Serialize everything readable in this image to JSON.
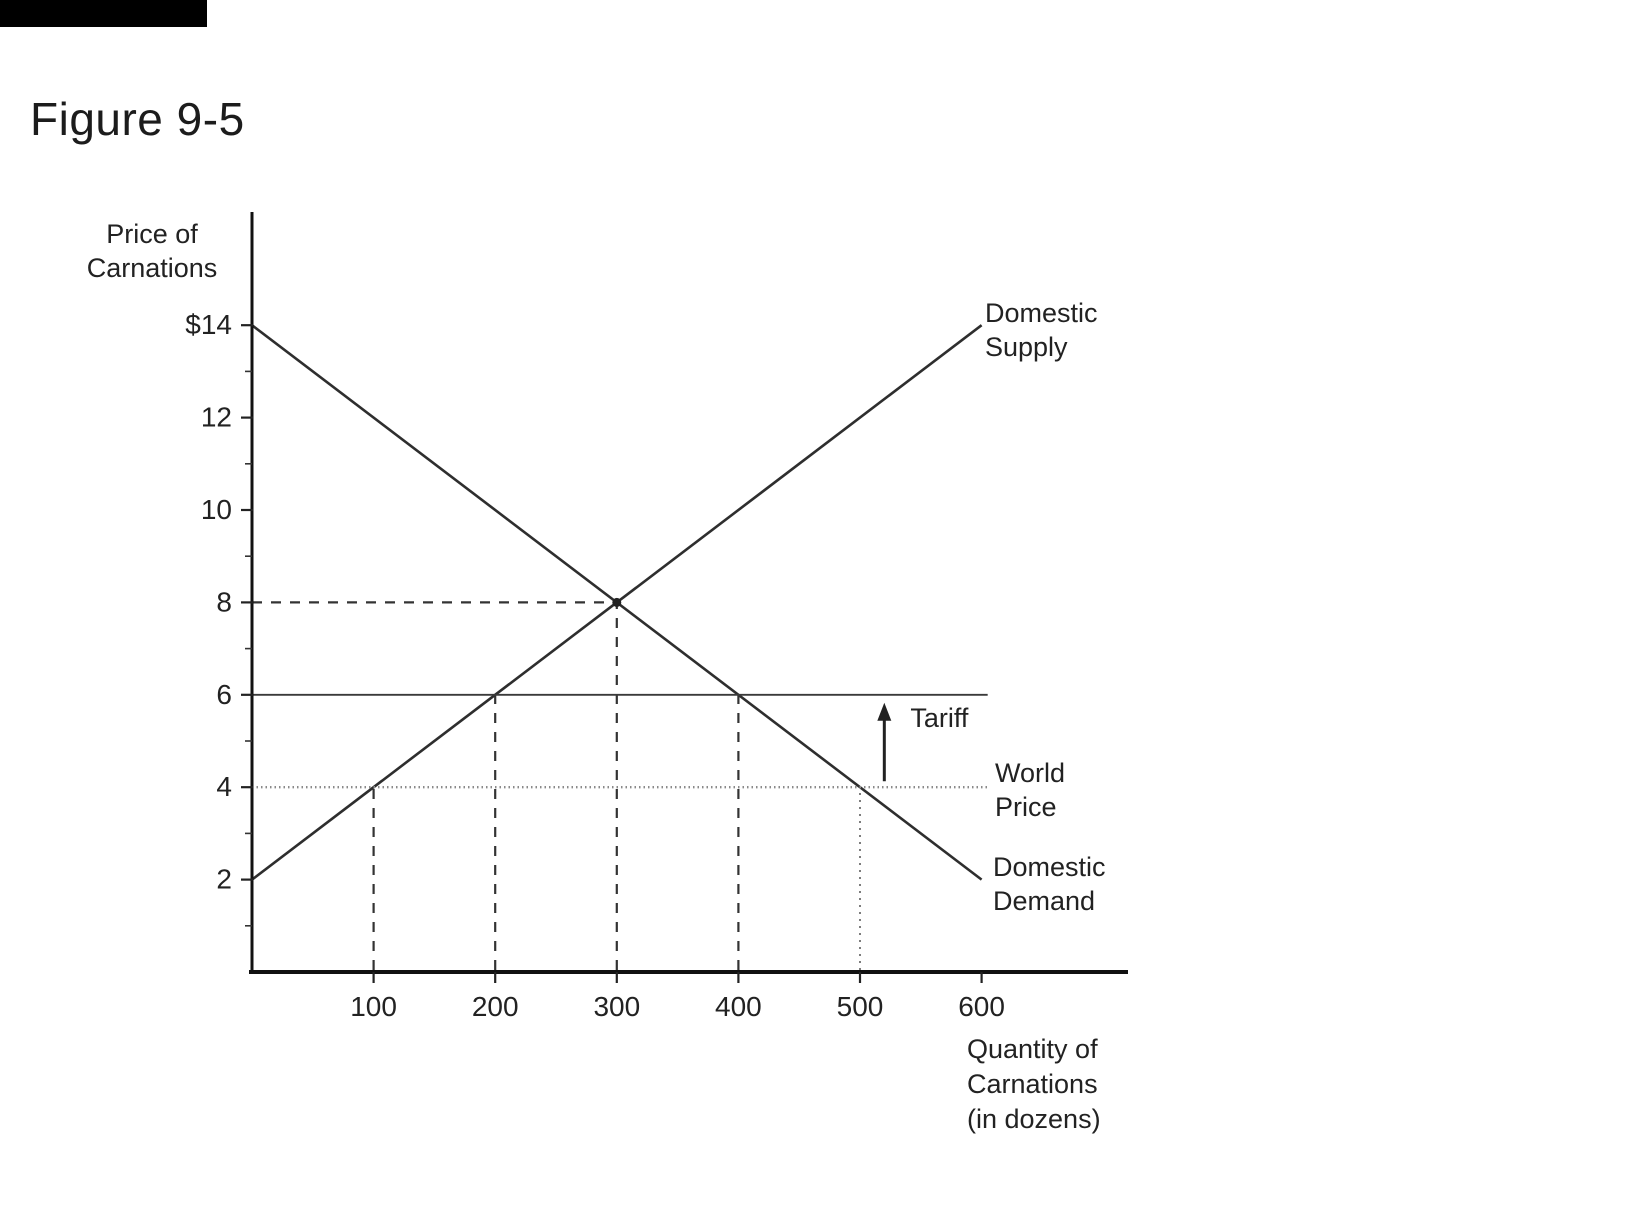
{
  "page": {
    "figure_title": "Figure 9-5"
  },
  "chart_data": {
    "type": "line",
    "title": "Figure 9-5",
    "ylabel": "Price of Carnations",
    "ylabel_lines": [
      "Price of",
      "Carnations"
    ],
    "xlabel": "Quantity of Carnations (in dozens)",
    "xlabel_lines": [
      "Quantity of",
      "Carnations",
      "(in dozens)"
    ],
    "y_axis": {
      "min": 0,
      "max": 16,
      "ticks": [
        {
          "label": "$14",
          "value": 14
        },
        {
          "label": "12",
          "value": 12
        },
        {
          "label": "10",
          "value": 10
        },
        {
          "label": "8",
          "value": 8
        },
        {
          "label": "6",
          "value": 6
        },
        {
          "label": "4",
          "value": 4
        },
        {
          "label": "2",
          "value": 2
        }
      ],
      "minor_ticks": [
        1,
        3,
        5,
        7,
        9,
        11,
        13
      ]
    },
    "x_axis": {
      "min": 0,
      "max": 700,
      "ticks": [
        {
          "label": "100",
          "value": 100
        },
        {
          "label": "200",
          "value": 200
        },
        {
          "label": "300",
          "value": 300
        },
        {
          "label": "400",
          "value": 400
        },
        {
          "label": "500",
          "value": 500
        },
        {
          "label": "600",
          "value": 600
        }
      ]
    },
    "series": [
      {
        "name": "Domestic Supply",
        "label_lines": [
          "Domestic",
          "Supply"
        ],
        "points": [
          [
            0,
            2
          ],
          [
            600,
            14
          ]
        ],
        "style": "solid"
      },
      {
        "name": "Domestic Demand",
        "label_lines": [
          "Domestic",
          "Demand"
        ],
        "points": [
          [
            0,
            14
          ],
          [
            600,
            2
          ]
        ],
        "style": "solid"
      },
      {
        "name": "Tariff Price",
        "label_lines": [],
        "points": [
          [
            0,
            6
          ],
          [
            605,
            6
          ]
        ],
        "style": "thin"
      },
      {
        "name": "World Price",
        "label_lines": [
          "World",
          "Price"
        ],
        "points": [
          [
            0,
            4
          ],
          [
            605,
            4
          ]
        ],
        "style": "dotted"
      }
    ],
    "tariff": {
      "label": "Tariff",
      "arrow_x": 520,
      "from_price": 4,
      "to_price": 6
    },
    "dashed_guides": [
      {
        "type": "horizontal",
        "price": 8,
        "from_quantity": 0,
        "to_quantity": 300,
        "style": "dashed"
      },
      {
        "type": "vertical",
        "quantity": 100,
        "to_price": 4,
        "style": "dashed"
      },
      {
        "type": "vertical",
        "quantity": 200,
        "to_price": 6,
        "style": "dashed"
      },
      {
        "type": "vertical",
        "quantity": 300,
        "to_price": 8,
        "style": "dashed"
      },
      {
        "type": "vertical",
        "quantity": 400,
        "to_price": 6,
        "style": "dashed"
      },
      {
        "type": "vertical",
        "quantity": 500,
        "to_price": 4,
        "style": "dotted"
      }
    ],
    "equilibrium": {
      "quantity": 300,
      "price": 8
    },
    "world_price": 4,
    "world_price_plus_tariff": 6,
    "key_quantities": {
      "domestic_supply_at_world_price": 100,
      "domestic_supply_at_tariff_price": 200,
      "equilibrium_quantity": 300,
      "domestic_demand_at_tariff_price": 400,
      "domestic_demand_at_world_price": 500
    }
  }
}
